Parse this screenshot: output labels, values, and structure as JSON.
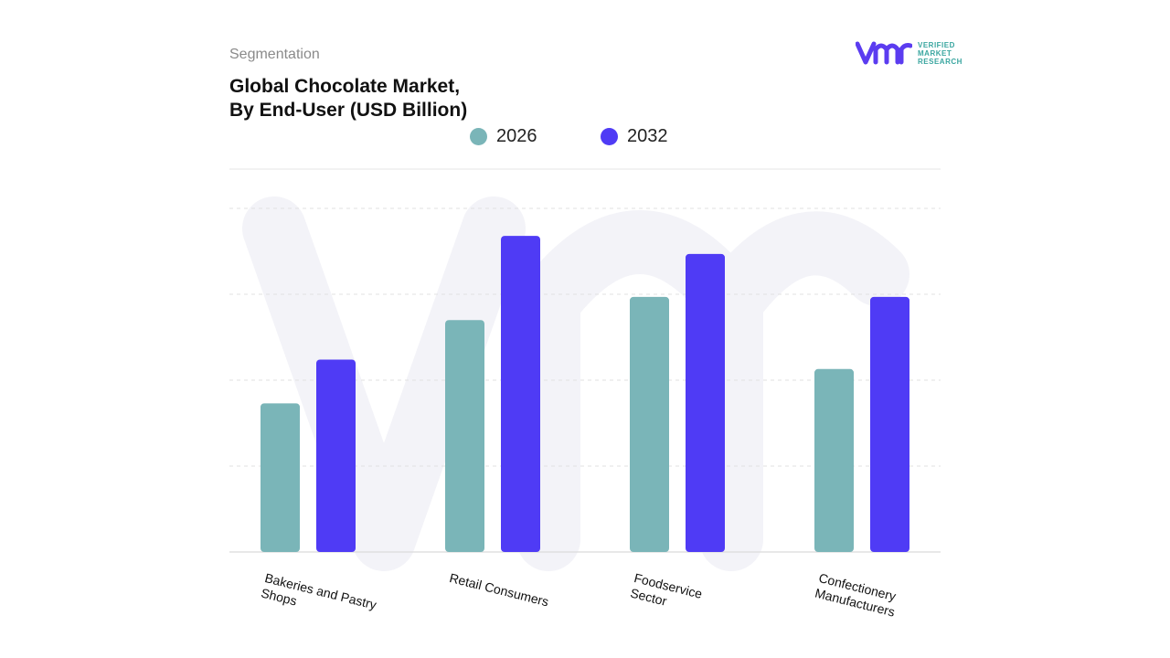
{
  "header": {
    "segment_label": "Segmentation",
    "title_line1": "Global Chocolate Market,",
    "title_line2": "By End-User (USD Billion)"
  },
  "logo": {
    "text_line1": "VERIFIED",
    "text_line2": "MARKET",
    "text_line3": "RESEARCH",
    "brand": "vmr"
  },
  "chart_data": {
    "type": "bar",
    "title": "Global Chocolate Market, By End-User (USD Billion)",
    "categories": [
      "Bakeries and Pastry\nShops",
      "Retail Consumers",
      "Foodservice\nSector",
      "Confectionery\nManufacturers"
    ],
    "series": [
      {
        "name": "2026",
        "color": "#7ab5b8",
        "values": [
          1.73,
          2.7,
          2.97,
          2.13
        ]
      },
      {
        "name": "2032",
        "color": "#4f3bf5",
        "values": [
          2.24,
          3.68,
          3.47,
          2.97
        ]
      }
    ],
    "ylim": [
      0,
      4
    ],
    "grid": true,
    "legend": "top-center",
    "xlabel": "",
    "ylabel": ""
  }
}
